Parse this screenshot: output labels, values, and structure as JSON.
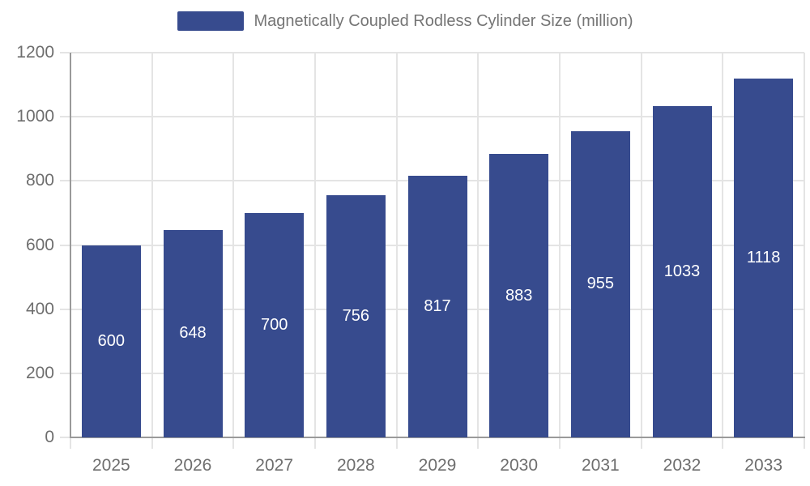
{
  "chart_data": {
    "type": "bar",
    "title": "Magnetically Coupled Rodless Cylinder Size (million)",
    "categories": [
      "2025",
      "2026",
      "2027",
      "2028",
      "2029",
      "2030",
      "2031",
      "2032",
      "2033"
    ],
    "values": [
      600,
      648,
      700,
      756,
      817,
      883,
      955,
      1033,
      1118
    ],
    "xlabel": "",
    "ylabel": "",
    "ylim": [
      0,
      1200
    ],
    "yticks": [
      0,
      200,
      400,
      600,
      800,
      1000,
      1200
    ],
    "grid": true,
    "legend_position": "top",
    "value_labels": "inside-center",
    "colors": {
      "bar": "#374b8e",
      "bar_label": "#ffffff",
      "axis_line": "#9a9a9a",
      "grid_line": "#e4e4e4",
      "axis_text": "#6e6e6e",
      "legend_text": "#757575",
      "background": "#ffffff"
    }
  }
}
